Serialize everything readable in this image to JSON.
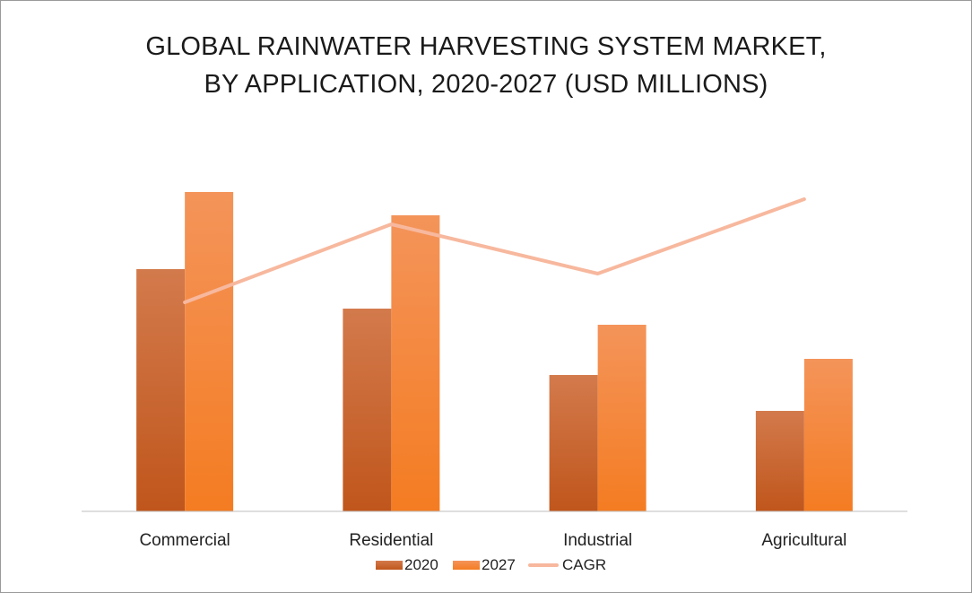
{
  "chart_data": {
    "type": "bar",
    "title_lines": [
      "GLOBAL RAINWATER HARVESTING SYSTEM MARKET,",
      "BY APPLICATION, 2020-2027 (USD MILLIONS)"
    ],
    "categories": [
      "Commercial",
      "Residential",
      "Industrial",
      "Agricultural"
    ],
    "series": [
      {
        "name": "2020",
        "type": "bar",
        "values": [
          270,
          226,
          152,
          112
        ],
        "color": "#c55a11"
      },
      {
        "name": "2027",
        "type": "bar",
        "values": [
          356,
          330,
          208,
          170
        ],
        "color": "#f4822b"
      },
      {
        "name": "CAGR",
        "type": "line",
        "values": [
          233,
          320,
          265,
          348
        ],
        "color": "#f7b89e"
      }
    ],
    "ylim": [
      0,
      400
    ],
    "grid": false,
    "legend": "bottom",
    "colors": {
      "bar2020_top": "#d37a4c",
      "bar2020_bottom": "#c0561c",
      "bar2027_top": "#f4945a",
      "bar2027_bottom": "#f47c22",
      "axis": "#bfbfbf"
    }
  }
}
